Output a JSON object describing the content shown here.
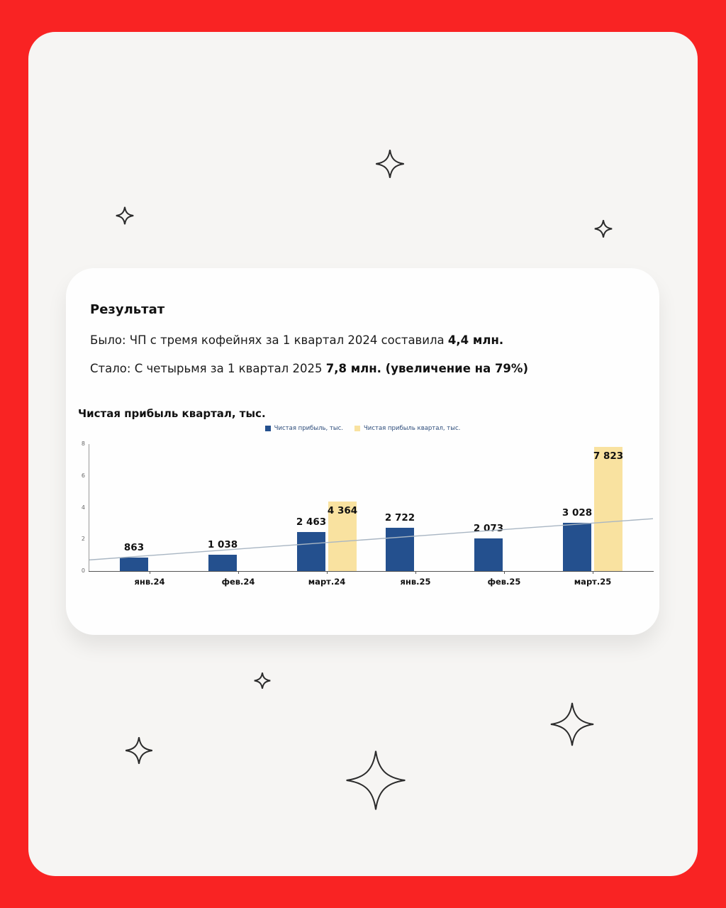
{
  "frame": {
    "border_color": "#f92323",
    "panel_color": "#f6f5f3",
    "card_color": "#fefefe"
  },
  "card": {
    "title": "Результат",
    "line1_prefix": "Было: ЧП с тремя кофейнях за 1 квартал 2024 составила ",
    "line1_bold": "4,4 млн.",
    "line2_prefix": "Стало: С четырьмя за 1 квартал 2025 ",
    "line2_bold": "7,8 млн. (увеличение на 79%)"
  },
  "chart_data": {
    "type": "bar",
    "title": "Чистая прибыль квартал, тыс.",
    "categories": [
      "янв.24",
      "фев.24",
      "март.24",
      "янв.25",
      "фев.25",
      "март.25"
    ],
    "series": [
      {
        "name": "Чистая прибыль, тыс.",
        "color": "#24508e",
        "values": [
          863,
          1038,
          2463,
          2722,
          2073,
          3028
        ],
        "value_labels": [
          "863",
          "1 038",
          "2 463",
          "2 722",
          "2 073",
          "3 028"
        ]
      },
      {
        "name": "Чистая прибыль квартал, тыс.",
        "color": "#f9e2a0",
        "values": [
          null,
          null,
          4364,
          null,
          null,
          7823
        ],
        "value_labels": [
          null,
          null,
          "4 364",
          null,
          null,
          "7 823"
        ]
      }
    ],
    "ylim": [
      0,
      8000
    ],
    "y_ticks": [
      {
        "value": 0,
        "label": "0"
      },
      {
        "value": 2000,
        "label": "2"
      },
      {
        "value": 4000,
        "label": "4"
      },
      {
        "value": 6000,
        "label": "6"
      },
      {
        "value": 8000,
        "label": "8"
      }
    ],
    "trendline": {
      "start_value": 700,
      "end_value": 3300,
      "color": "#a9b6c3"
    },
    "legend_position": "top",
    "grid": "off"
  },
  "decorations": {
    "sparkle_icon_color": "#2b2b2b"
  }
}
